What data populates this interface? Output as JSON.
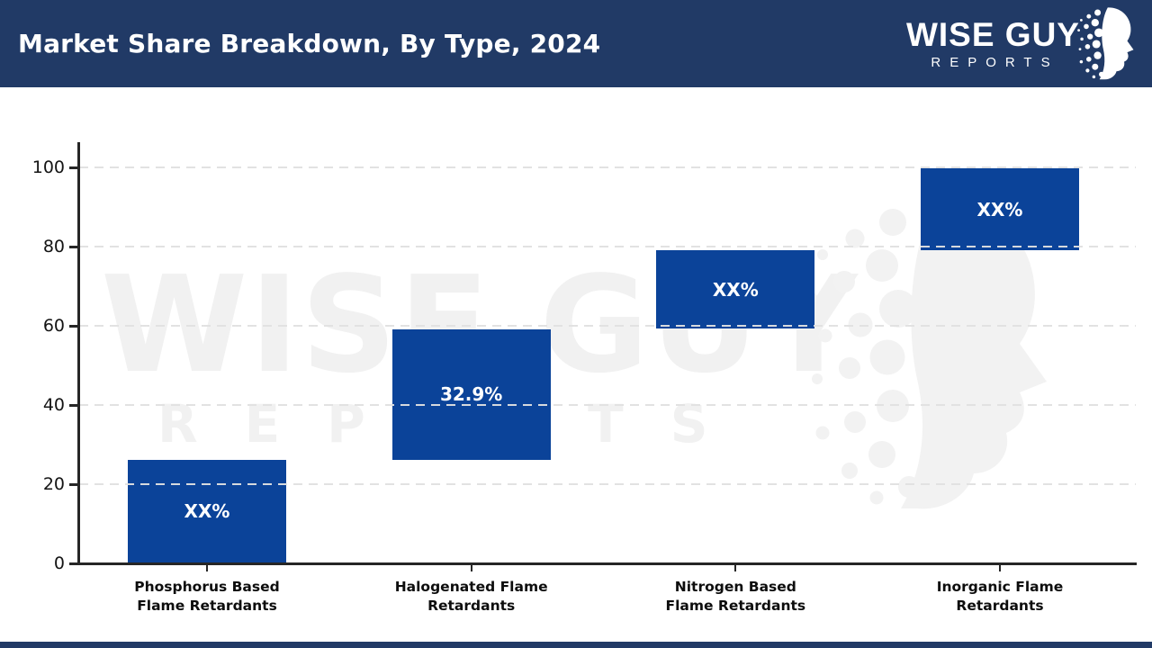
{
  "header": {
    "title": "Market Share Breakdown, By Type, 2024",
    "logo": {
      "line1": "WISE GUY",
      "line2": "REPORTS"
    }
  },
  "watermark": {
    "line1": "WISE GUY",
    "line2": "REPORTS"
  },
  "colors": {
    "header_bg": "#213A66",
    "bar": "#0B4399",
    "title_text": "#FFFFFF",
    "watermark": "#F1F1F1"
  },
  "chart_data": {
    "type": "bar",
    "subtype": "floating-waterfall",
    "title": "Market Share Breakdown, By Type, 2024",
    "categories": [
      "Phosphorus Based Flame Retardants",
      "Halogenated Flame Retardants",
      "Nitrogen Based Flame Retardants",
      "Inorganic Flame Retardants"
    ],
    "bars": [
      {
        "category_lines": [
          "Phosphorus Based",
          "Flame Retardants"
        ],
        "start": 0,
        "end": 26.2,
        "label": "XX%"
      },
      {
        "category_lines": [
          "Halogenated Flame",
          "Retardants"
        ],
        "start": 26.2,
        "end": 59.1,
        "label": "32.9%",
        "value": 32.9
      },
      {
        "category_lines": [
          "Nitrogen Based",
          "Flame Retardants"
        ],
        "start": 59.4,
        "end": 79.0,
        "label": "XX%"
      },
      {
        "category_lines": [
          "Inorganic Flame",
          "Retardants"
        ],
        "start": 79.0,
        "end": 99.8,
        "label": "XX%"
      }
    ],
    "ylim": [
      0,
      100
    ],
    "yticks": [
      0,
      20,
      40,
      60,
      80,
      100
    ],
    "xlabel": "",
    "ylabel": "",
    "grid": "dashed-horizontal",
    "legend": "none",
    "bar_color": "#0B4399"
  }
}
